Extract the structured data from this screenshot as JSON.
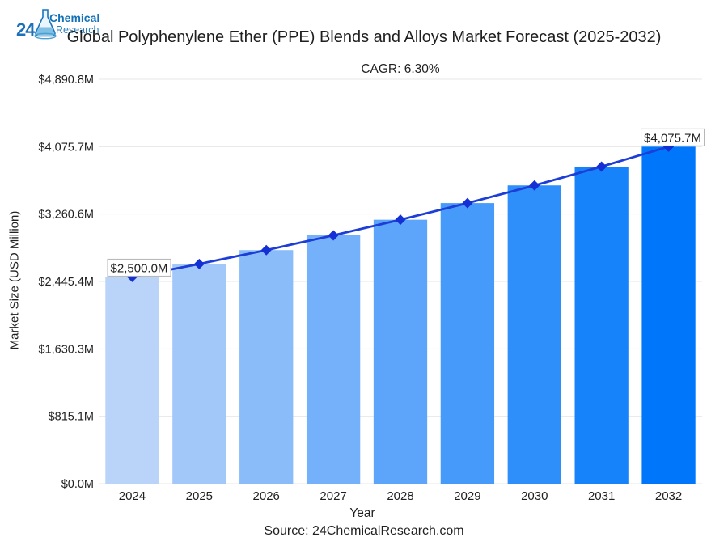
{
  "logo": {
    "number": "24",
    "line1": "Chemical",
    "line2": "Research",
    "blue": "#1472b8",
    "light_blue": "#7fc0e4"
  },
  "header": {
    "title": "Global Polyphenylene Ether (PPE) Blends and Alloys Market Forecast (2025-2032)",
    "subtitle": "CAGR: 6.30%"
  },
  "axes": {
    "y_title": "Market Size (USD Million)",
    "x_title": "Year"
  },
  "footer": {
    "source": "Source: 24ChemicalResearch.com"
  },
  "colors": {
    "grid": "#e7e7e7",
    "axis_text": "#212121",
    "annotation_border": "#b3b3b3",
    "annotation_bg": "#ffffff"
  },
  "chart_data": {
    "type": "bar",
    "line_overlay": true,
    "title": "Global Polyphenylene Ether (PPE) Blends and Alloys Market Forecast (2025-2032)",
    "subtitle": "CAGR: 6.30%",
    "xlabel": "Year",
    "ylabel": "Market Size (USD Million)",
    "categories": [
      "2024",
      "2025",
      "2026",
      "2027",
      "2028",
      "2029",
      "2030",
      "2031",
      "2032"
    ],
    "values": [
      2500.0,
      2657.5,
      2824.9,
      3002.9,
      3192.1,
      3393.2,
      3607.0,
      3834.2,
      4075.7
    ],
    "cagr_percent": 6.3,
    "ylim": [
      0,
      4890.8
    ],
    "yticks": {
      "values": [
        0,
        815.1,
        1630.3,
        2445.4,
        3260.6,
        4075.7,
        4890.8
      ],
      "labels": [
        "$0.0M",
        "$815.1M",
        "$1,630.3M",
        "$2,445.4M",
        "$3,260.6M",
        "$4,075.7M",
        "$4,890.8M"
      ]
    },
    "grid": true,
    "legend": false,
    "bar_colors": [
      "#b9d3f9",
      "#a2c8f9",
      "#8bbcfa",
      "#74b1fa",
      "#5ca5fa",
      "#459afa",
      "#2e8efa",
      "#1783fb",
      "#0077fb"
    ],
    "line_color": "#1c3dd6",
    "marker_color": "#1430d4",
    "marker": "diamond",
    "annotations": [
      {
        "category": "2024",
        "text": "$2,500.0M",
        "placement": "left"
      },
      {
        "category": "2032",
        "text": "$4,075.7M",
        "placement": "above"
      }
    ]
  }
}
